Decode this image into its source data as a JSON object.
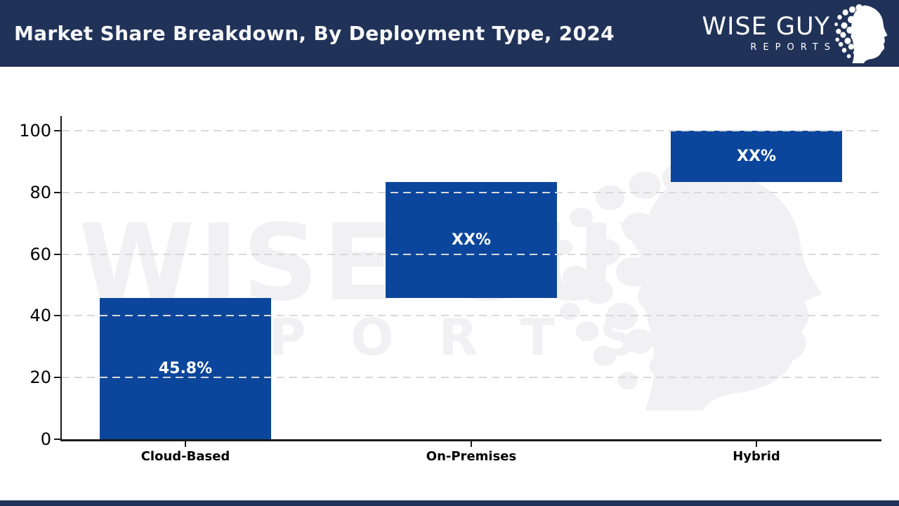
{
  "header": {
    "title": "Market Share Breakdown, By Deployment Type, 2024",
    "logo": {
      "wordmark": "WISE GUY",
      "subtext": "REPORTS"
    }
  },
  "watermark": {
    "wordmark": "WISE GUY",
    "subtext": "REPORTS"
  },
  "chart_data": {
    "type": "bar",
    "subtype": "waterfall",
    "title": "Market Share Breakdown, By Deployment Type, 2024",
    "categories": [
      "Cloud-Based",
      "On-Premises",
      "Hybrid"
    ],
    "segments": [
      {
        "category": "Cloud-Based",
        "start": 0,
        "end": 45.8,
        "label": "45.8%"
      },
      {
        "category": "On-Premises",
        "start": 45.8,
        "end": 83.3,
        "label": "XX%"
      },
      {
        "category": "Hybrid",
        "start": 83.3,
        "end": 100,
        "label": "XX%"
      }
    ],
    "ylim": [
      0,
      100
    ],
    "yticks": [
      0,
      20,
      40,
      60,
      80,
      100
    ],
    "xlabel": "",
    "ylabel": "",
    "grid": "dashed-horizontal",
    "legend": "none",
    "colors": {
      "bar": "#0b469c",
      "header_bg": "#203258",
      "grid": "#d9d9d9",
      "axis": "#1a1a1a",
      "watermark": "#f1f1f4",
      "bar_label_text": "#ffffff"
    }
  }
}
